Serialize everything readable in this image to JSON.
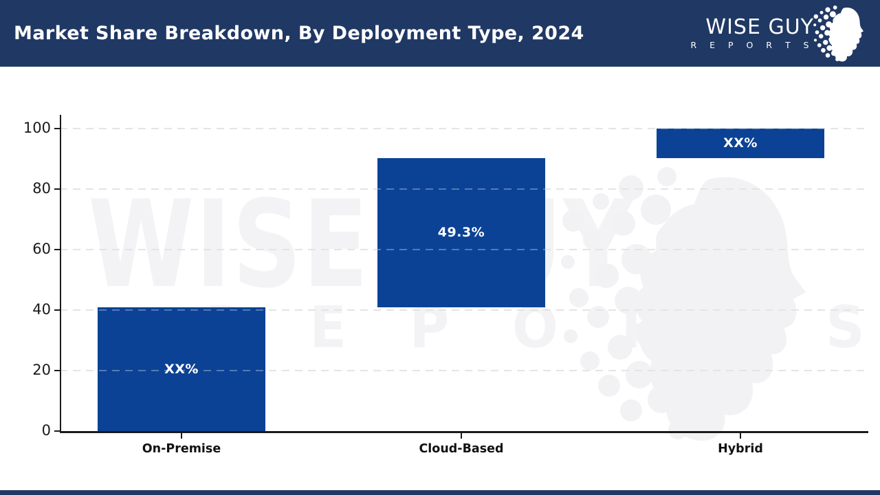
{
  "header": {
    "title": "Market Share Breakdown, By Deployment Type, 2024",
    "bg_color": "#203864",
    "logo": {
      "line1": "WISE GUY",
      "line2": "R E P O R T S"
    }
  },
  "watermark": {
    "line1": "WISE GUY",
    "line2": "R E P O R T S"
  },
  "chart_data": {
    "type": "bar",
    "subtype": "waterfall",
    "title": "Market Share Breakdown, By Deployment Type, 2024",
    "categories": [
      "On-Premise",
      "Cloud-Based",
      "Hybrid"
    ],
    "series": [
      {
        "name": "Market Share %",
        "segments": [
          {
            "category": "On-Premise",
            "start": 0,
            "end": 41.0,
            "label": "XX%"
          },
          {
            "category": "Cloud-Based",
            "start": 41.0,
            "end": 90.3,
            "label": "49.3%"
          },
          {
            "category": "Hybrid",
            "start": 90.3,
            "end": 100,
            "label": "XX%"
          }
        ]
      }
    ],
    "xlabel": "",
    "ylabel": "",
    "yticks": [
      0,
      20,
      40,
      60,
      80,
      100
    ],
    "ylim": [
      0,
      105
    ],
    "grid": "horizontal-dashed",
    "legend": "none",
    "bar_color": "#0b4295",
    "bar_label_color": "#ffffff",
    "grid_color": "#d9d9d9",
    "axis_color": "#1a1a1a"
  }
}
